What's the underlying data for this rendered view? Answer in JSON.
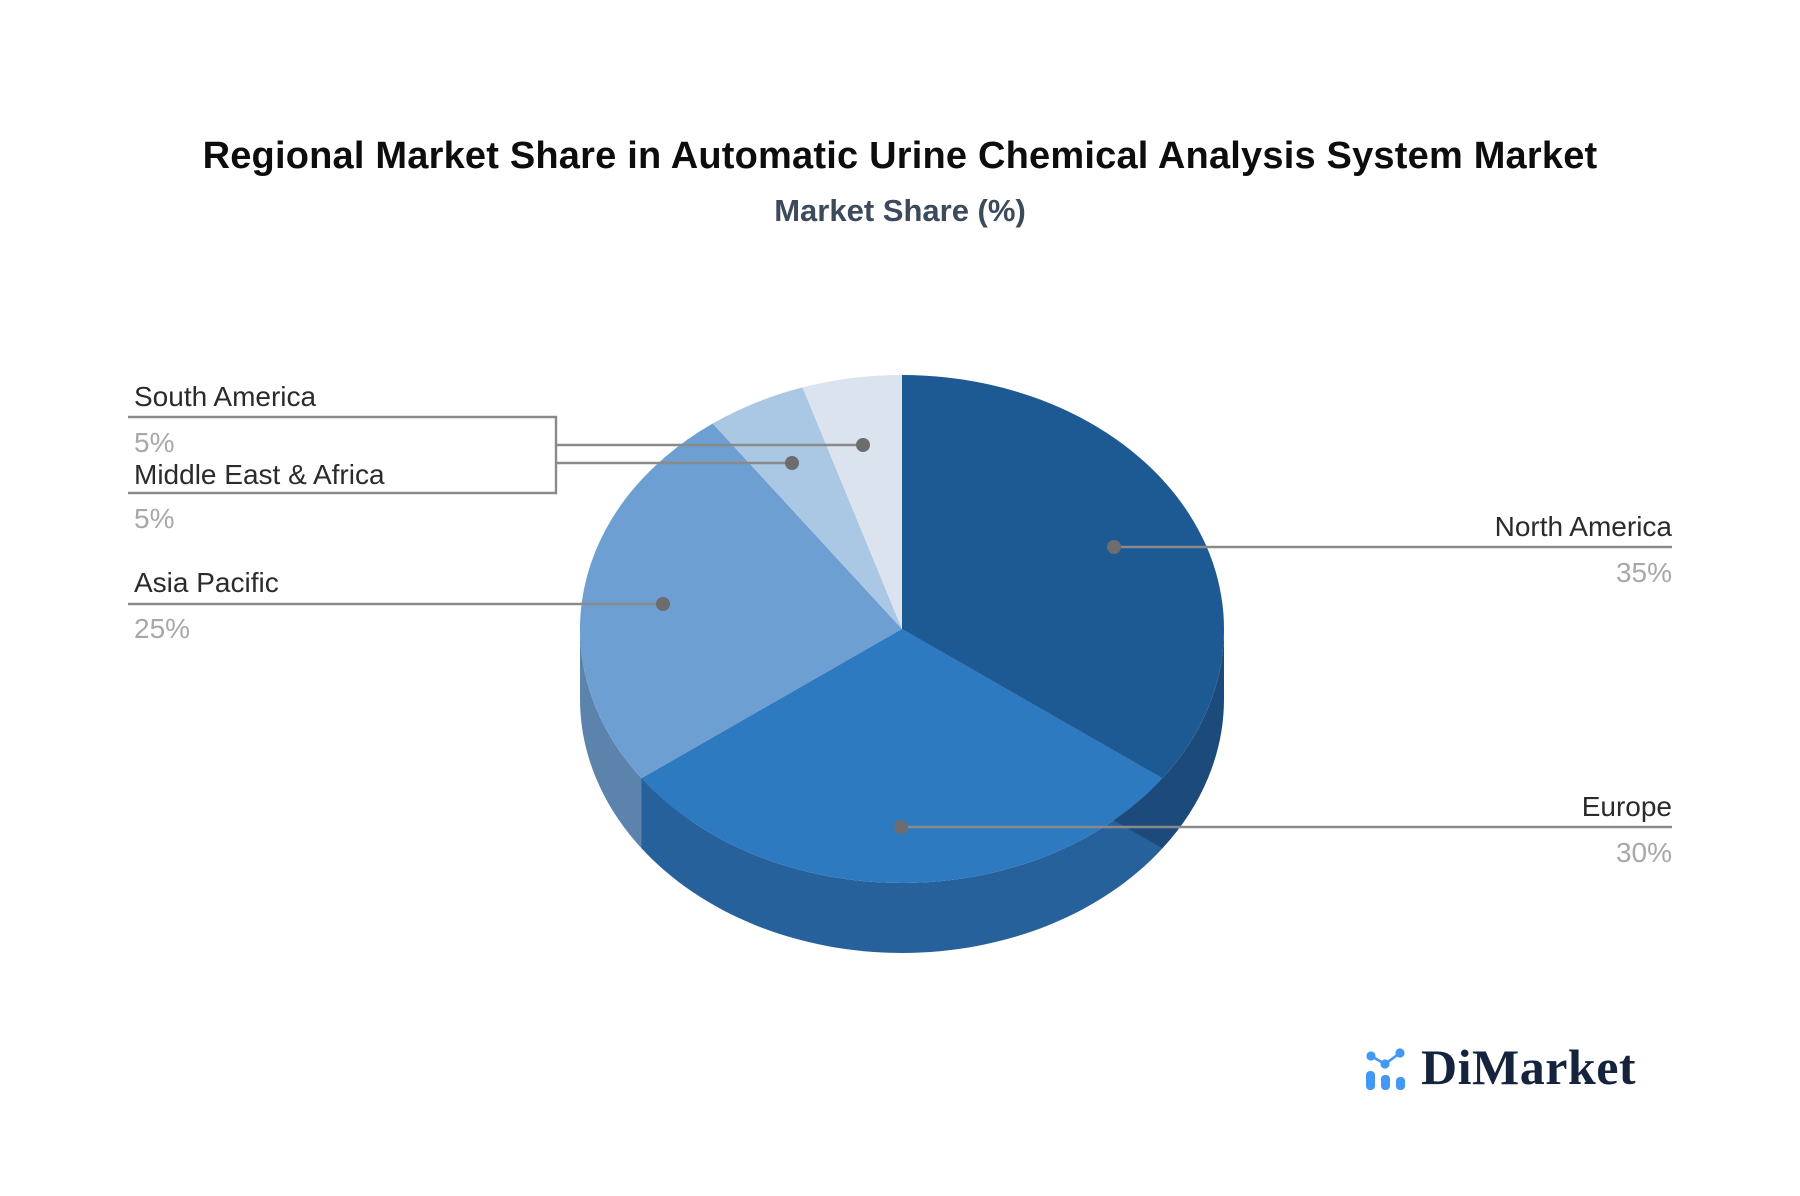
{
  "chart_data": {
    "type": "pie",
    "style": "3d",
    "title": "Regional Market Share in Automatic Urine Chemical Analysis System Market",
    "subtitle": "Market Share (%)",
    "unit": "%",
    "direction": "clockwise",
    "start_angle_deg": 0,
    "legend": "none (leader-line labels)",
    "slices": [
      {
        "name": "North America",
        "value": 35,
        "pct_label": "35%",
        "color": "#1d5a94",
        "side_color": "#1c4a7a"
      },
      {
        "name": "Europe",
        "value": 30,
        "pct_label": "30%",
        "color": "#2e7ac1",
        "side_color": "#27619b"
      },
      {
        "name": "Asia Pacific",
        "value": 25,
        "pct_label": "25%",
        "color": "#6d9fd3",
        "side_color": "#5c83ac"
      },
      {
        "name": "Middle East & Africa",
        "value": 5,
        "pct_label": "5%",
        "color": "#aac7e3",
        "side_color": "#8aa6c4"
      },
      {
        "name": "South America",
        "value": 5,
        "pct_label": "5%",
        "color": "#dbe3ee",
        "side_color": "#b8c4d6"
      }
    ],
    "colors": {
      "title": "#0d0d0d",
      "subtitle": "#3d4a5c",
      "label_text": "#2b2b2b",
      "value_text": "#a8a8a8",
      "leader_line": "#8a8a8a",
      "leader_dot": "#6d6d6d"
    }
  },
  "logo": {
    "text": "DiMarket",
    "icon": "bar-chart-trend-icon",
    "icon_color": "#4298f5",
    "text_color": "#15233c"
  }
}
